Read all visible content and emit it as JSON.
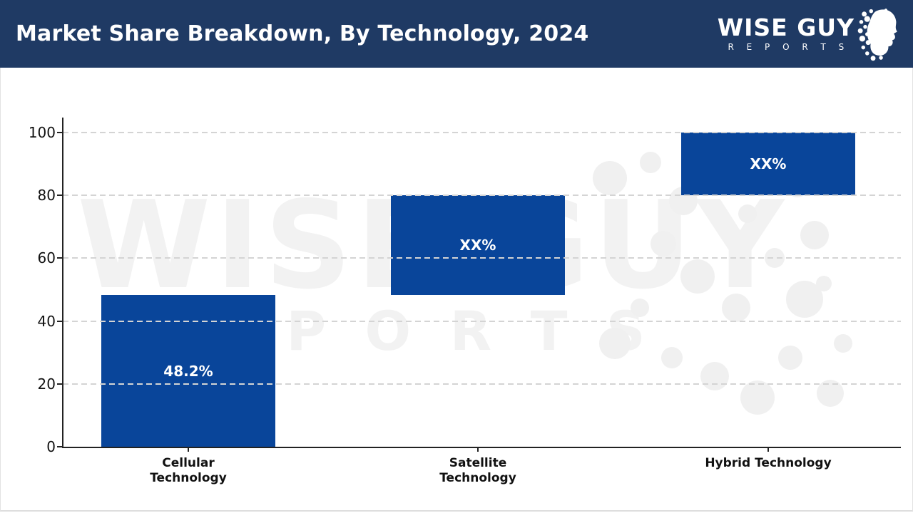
{
  "header": {
    "title": "Market Share Breakdown, By Technology, 2024",
    "logo": {
      "line1": "WISE GUY",
      "line2": "R E P O R T S"
    }
  },
  "watermark": {
    "line1": "WISE GUY",
    "line2": "R E P O R T S"
  },
  "colors": {
    "header_bg": "#1f3a64",
    "bar": "#09459a",
    "grid": "#d4d4d4",
    "axis": "#222222",
    "watermark": "#f2f2f2",
    "bar_label_text": "#ffffff"
  },
  "chart_data": {
    "type": "bar",
    "subtype": "waterfall",
    "title": "Market Share Breakdown, By Technology, 2024",
    "categories": [
      "Cellular\nTechnology",
      "Satellite\nTechnology",
      "Hybrid Technology"
    ],
    "bars": [
      {
        "category": "Cellular Technology",
        "base": 0,
        "top": 48.2,
        "label": "48.2%"
      },
      {
        "category": "Satellite Technology",
        "base": 48.2,
        "top": 80,
        "label": "XX%"
      },
      {
        "category": "Hybrid Technology",
        "base": 80,
        "top": 100,
        "label": "XX%"
      }
    ],
    "ylim": [
      0,
      100
    ],
    "yticks": [
      0,
      20,
      40,
      60,
      80,
      100
    ],
    "xlabel": "",
    "ylabel": "",
    "grid": "horizontal dashed",
    "legend": "none",
    "bar_color": "#09459a"
  }
}
